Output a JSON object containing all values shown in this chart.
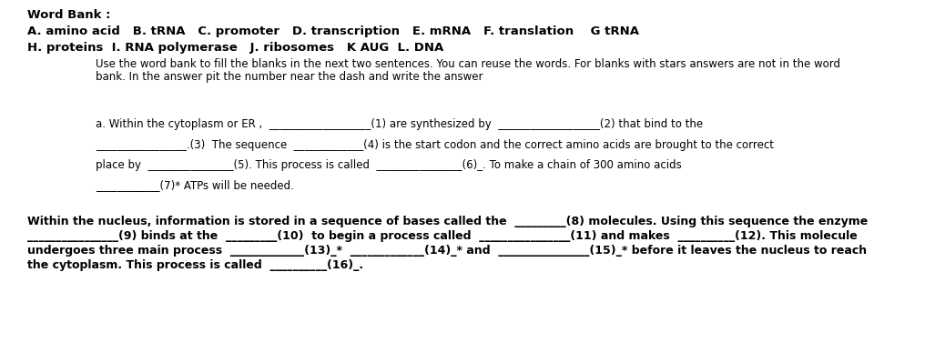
{
  "background_color": "#ffffff",
  "title": "Word Bank :",
  "word_bank_line1": "A. amino acid   B. tRNA   C. promoter   D. transcription   E. mRNA   F. translation    G tRNA",
  "word_bank_line2": "H. proteins  I. RNA polymerase   J. ribosomes   K AUG  L. DNA",
  "instruction_line1": "Use the word bank to fill the blanks in the next two sentences. You can reuse the words. For blanks with stars answers are not in the word",
  "instruction_line2": "bank. In the answer pit the number near the dash and write the answer",
  "sentence_a_line1": "a. Within the cytoplasm or ER ,  ___________________(1) are synthesized by  ___________________(2) that bind to the",
  "sentence_a_line2": "_________________.(3)  The sequence  _____________(4) is the start codon and the correct amino acids are brought to the correct",
  "sentence_a_line3": "place by  ________________(5). This process is called  ________________(6)_. To make a chain of 300 amino acids",
  "sentence_a_line4": "____________(7)* ATPs will be needed.",
  "sentence_b_line1": "Within the nucleus, information is stored in a sequence of bases called the  _________(8) molecules. Using this sequence the enzyme",
  "sentence_b_line2": "________________(9) binds at the  _________(10)  to begin a process called  ________________(11) and makes  __________(12). This molecule",
  "sentence_b_line3": "undergoes three main process  _____________(13)_*  _____________(14)_* and  ________________(15)_* before it leaves the nucleus to reach",
  "sentence_b_line4": "the cytoplasm. This process is called  __________(16)_."
}
